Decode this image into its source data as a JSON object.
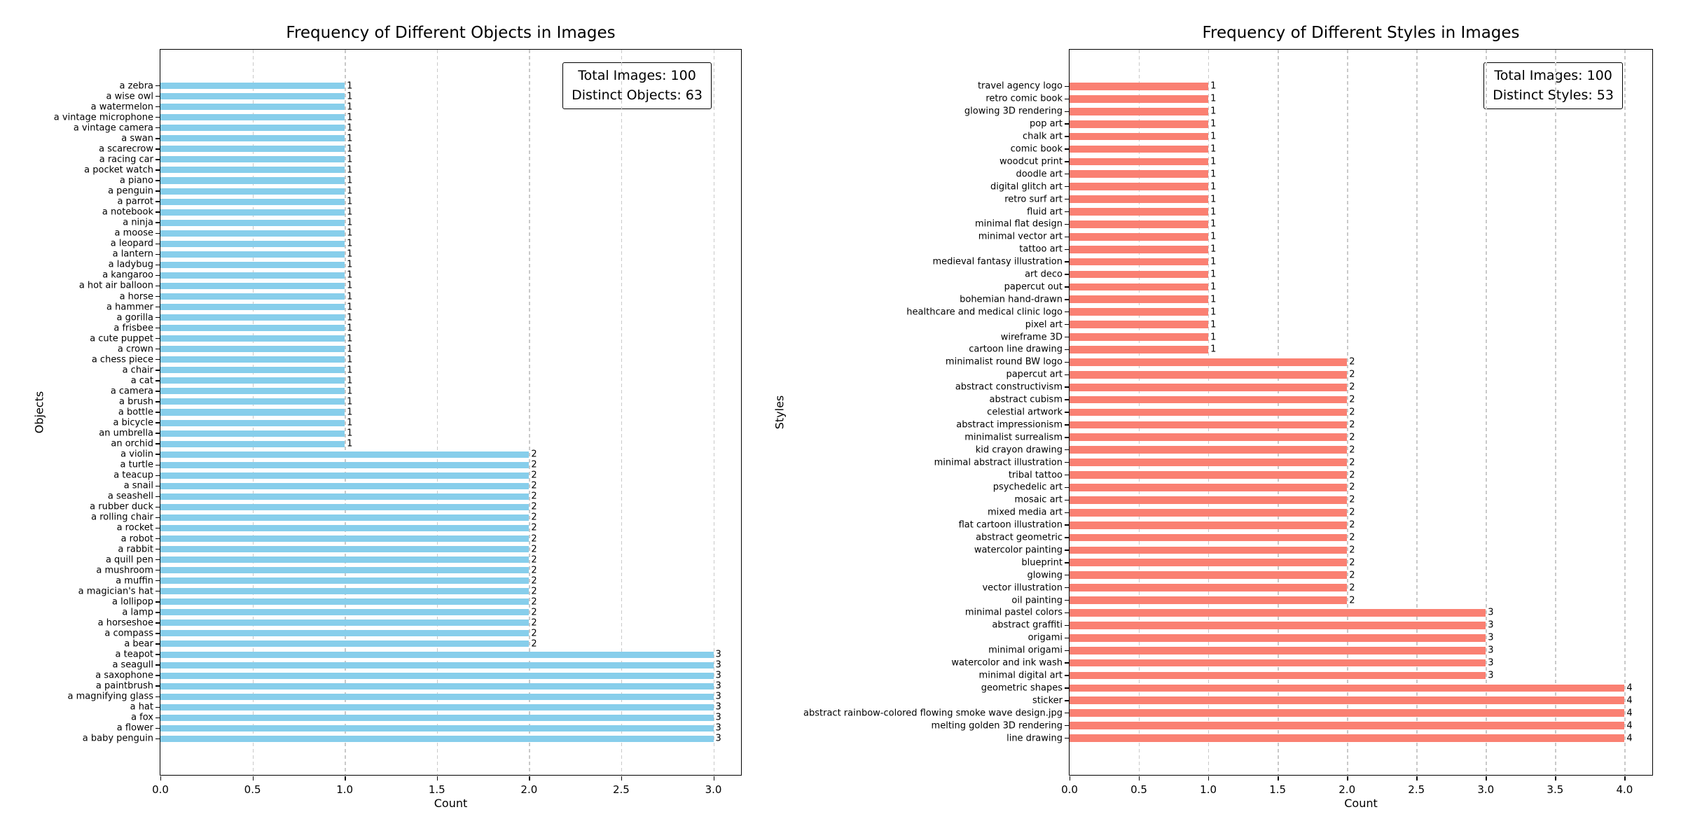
{
  "figure": {
    "background": "#ffffff",
    "grid_color": "#c9c9c9",
    "spine_color": "#000000"
  },
  "chart_data": [
    {
      "type": "bar",
      "orientation": "horizontal",
      "title": "Frequency of Different Objects in Images",
      "xlabel": "Count",
      "ylabel": "Objects",
      "bar_color": "#87CEEB",
      "annotation": {
        "line1": "Total Images: 100",
        "line2": "Distinct Objects: 63"
      },
      "xlim": [
        0,
        3.15
      ],
      "xticks": [
        0,
        0.5,
        1,
        1.5,
        2,
        2.5,
        3
      ],
      "xtick_labels": [
        "0.0",
        "0.5",
        "1.0",
        "1.5",
        "2.0",
        "2.5",
        "3.0"
      ],
      "grid": "vertical-dashed",
      "legend": "none",
      "categories": [
        "a zebra",
        "a wise owl",
        "a watermelon",
        "a vintage microphone",
        "a vintage camera",
        "a swan",
        "a scarecrow",
        "a racing car",
        "a pocket watch",
        "a piano",
        "a penguin",
        "a parrot",
        "a notebook",
        "a ninja",
        "a moose",
        "a leopard",
        "a lantern",
        "a ladybug",
        "a kangaroo",
        "a hot air balloon",
        "a horse",
        "a hammer",
        "a gorilla",
        "a frisbee",
        "a cute puppet",
        "a crown",
        "a chess piece",
        "a chair",
        "a cat",
        "a camera",
        "a brush",
        "a bottle",
        "a bicycle",
        "an umbrella",
        "an orchid",
        "a violin",
        "a turtle",
        "a teacup",
        "a snail",
        "a seashell",
        "a rubber duck",
        "a rolling chair",
        "a rocket",
        "a robot",
        "a rabbit",
        "a quill pen",
        "a mushroom",
        "a muffin",
        "a magician's hat",
        "a lollipop",
        "a lamp",
        "a horseshoe",
        "a compass",
        "a bear",
        "a teapot",
        "a seagull",
        "a saxophone",
        "a paintbrush",
        "a magnifying glass",
        "a hat",
        "a fox",
        "a flower",
        "a baby penguin"
      ],
      "values": [
        1,
        1,
        1,
        1,
        1,
        1,
        1,
        1,
        1,
        1,
        1,
        1,
        1,
        1,
        1,
        1,
        1,
        1,
        1,
        1,
        1,
        1,
        1,
        1,
        1,
        1,
        1,
        1,
        1,
        1,
        1,
        1,
        1,
        1,
        1,
        2,
        2,
        2,
        2,
        2,
        2,
        2,
        2,
        2,
        2,
        2,
        2,
        2,
        2,
        2,
        2,
        2,
        2,
        2,
        3,
        3,
        3,
        3,
        3,
        3,
        3,
        3,
        3
      ]
    },
    {
      "type": "bar",
      "orientation": "horizontal",
      "title": "Frequency of Different Styles in Images",
      "xlabel": "Count",
      "ylabel": "Styles",
      "bar_color": "#FA8072",
      "annotation": {
        "line1": "Total Images: 100",
        "line2": "Distinct Styles: 53"
      },
      "xlim": [
        0,
        4.2
      ],
      "xticks": [
        0,
        0.5,
        1,
        1.5,
        2,
        2.5,
        3,
        3.5,
        4
      ],
      "xtick_labels": [
        "0.0",
        "0.5",
        "1.0",
        "1.5",
        "2.0",
        "2.5",
        "3.0",
        "3.5",
        "4.0"
      ],
      "grid": "vertical-dashed",
      "legend": "none",
      "categories": [
        "travel agency logo",
        "retro comic book",
        "glowing 3D rendering",
        "pop art",
        "chalk art",
        "comic book",
        "woodcut print",
        "doodle art",
        "digital glitch art",
        "retro surf art",
        "fluid art",
        "minimal flat design",
        "minimal vector art",
        "tattoo art",
        "medieval fantasy illustration",
        "art deco",
        "papercut out",
        "bohemian hand-drawn",
        "healthcare and medical clinic logo",
        "pixel art",
        "wireframe 3D",
        "cartoon line drawing",
        "minimalist round BW logo",
        "papercut art",
        "abstract constructivism",
        "abstract cubism",
        "celestial artwork",
        "abstract impressionism",
        "minimalist surrealism",
        "kid crayon drawing",
        "minimal abstract illustration",
        "tribal tattoo",
        "psychedelic art",
        "mosaic art",
        "mixed media art",
        "flat cartoon illustration",
        "abstract geometric",
        "watercolor painting",
        "blueprint",
        "glowing",
        "vector illustration",
        "oil painting",
        "minimal pastel colors",
        "abstract graffiti",
        "origami",
        "minimal origami",
        "watercolor and ink wash",
        "minimal digital art",
        "geometric shapes",
        "sticker",
        "abstract rainbow-colored flowing smoke wave design.jpg",
        "melting golden 3D rendering",
        "line drawing"
      ],
      "values": [
        1,
        1,
        1,
        1,
        1,
        1,
        1,
        1,
        1,
        1,
        1,
        1,
        1,
        1,
        1,
        1,
        1,
        1,
        1,
        1,
        1,
        1,
        2,
        2,
        2,
        2,
        2,
        2,
        2,
        2,
        2,
        2,
        2,
        2,
        2,
        2,
        2,
        2,
        2,
        2,
        2,
        2,
        3,
        3,
        3,
        3,
        3,
        3,
        4,
        4,
        4,
        4,
        4
      ]
    }
  ]
}
